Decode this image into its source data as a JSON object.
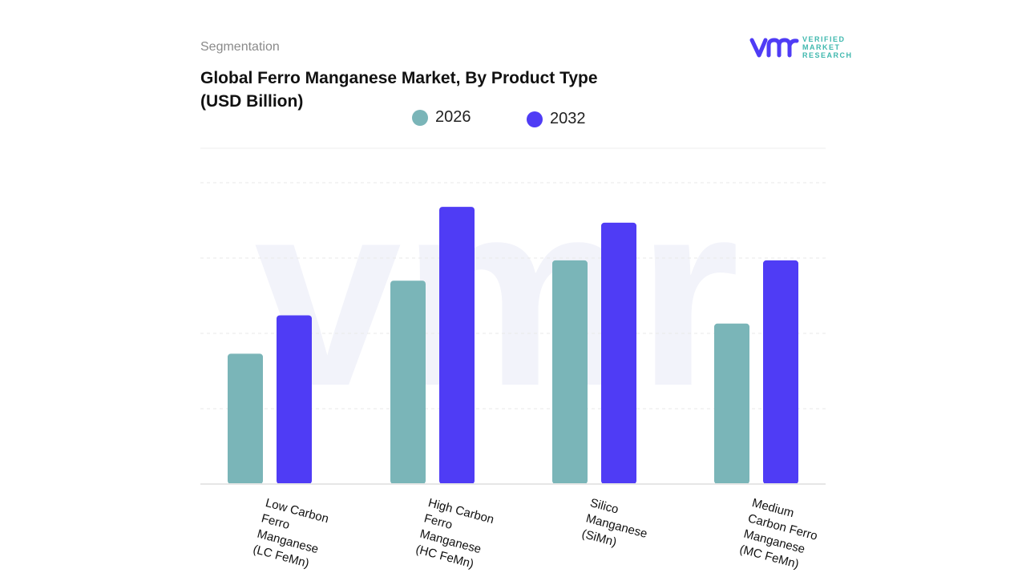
{
  "header": {
    "section": "Segmentation",
    "title": "Global Ferro Manganese Market, By Product Type (USD Billion)"
  },
  "logo": {
    "text_lines": [
      "VERIFIED",
      "MARKET",
      "RESEARCH"
    ],
    "mark": "vmr"
  },
  "chart_data": {
    "type": "bar",
    "title": "Global Ferro Manganese Market, By Product Type (USD Billion)",
    "categories": [
      "Low Carbon Ferro Manganese (LC FeMn)",
      "High Carbon Ferro Manganese (HC FeMn)",
      "Silico Manganese (SiMn)",
      "Medium Carbon Ferro Manganese (MC FeMn)"
    ],
    "series": [
      {
        "name": "2026",
        "color": "#7ab5b8",
        "values": [
          1.73,
          2.7,
          2.97,
          2.13
        ]
      },
      {
        "name": "2032",
        "color": "#4f3cf5",
        "values": [
          2.24,
          3.68,
          3.47,
          2.97
        ]
      }
    ],
    "ylim": [
      0,
      4
    ],
    "grid": true,
    "y_axis_labels_shown": false,
    "legend_position": "top-center"
  }
}
